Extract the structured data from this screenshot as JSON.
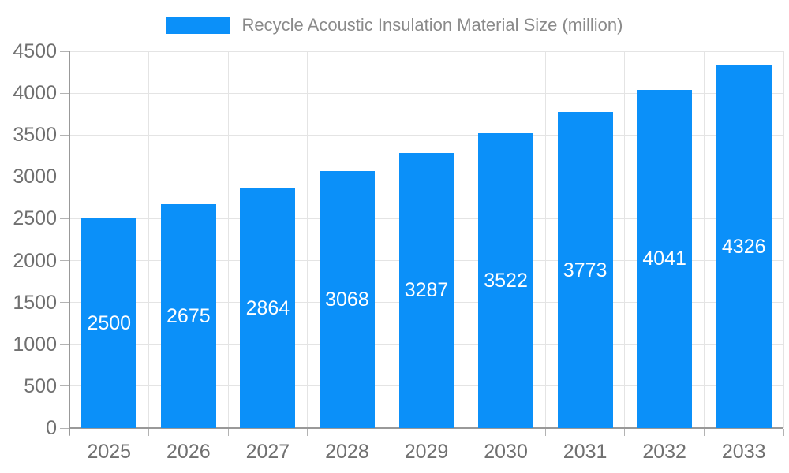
{
  "legend": {
    "label": "Recycle Acoustic Insulation Material Size (million)"
  },
  "chart_data": {
    "type": "bar",
    "title": "Recycle Acoustic Insulation Material Size (million)",
    "series_name": "Recycle Acoustic Insulation Material Size (million)",
    "categories": [
      "2025",
      "2026",
      "2027",
      "2028",
      "2029",
      "2030",
      "2031",
      "2032",
      "2033"
    ],
    "values": [
      2500,
      2675,
      2864,
      3068,
      3287,
      3522,
      3773,
      4041,
      4326
    ],
    "xlabel": "",
    "ylabel": "",
    "ylim": [
      0,
      4500
    ],
    "yticks": [
      0,
      500,
      1000,
      1500,
      2000,
      2500,
      3000,
      3500,
      4000,
      4500
    ],
    "grid": true,
    "legend_position": "top",
    "value_label_position": "inside-center"
  },
  "colors": {
    "bar": "#0b90f9",
    "bar_label_text": "#ffffff",
    "axis_line": "#999999",
    "tick_line": "#b3b3b3",
    "grid_line": "#e4e4e4",
    "axis_text": "#707070",
    "legend_text": "#8a8a8a",
    "background": "#ffffff"
  }
}
